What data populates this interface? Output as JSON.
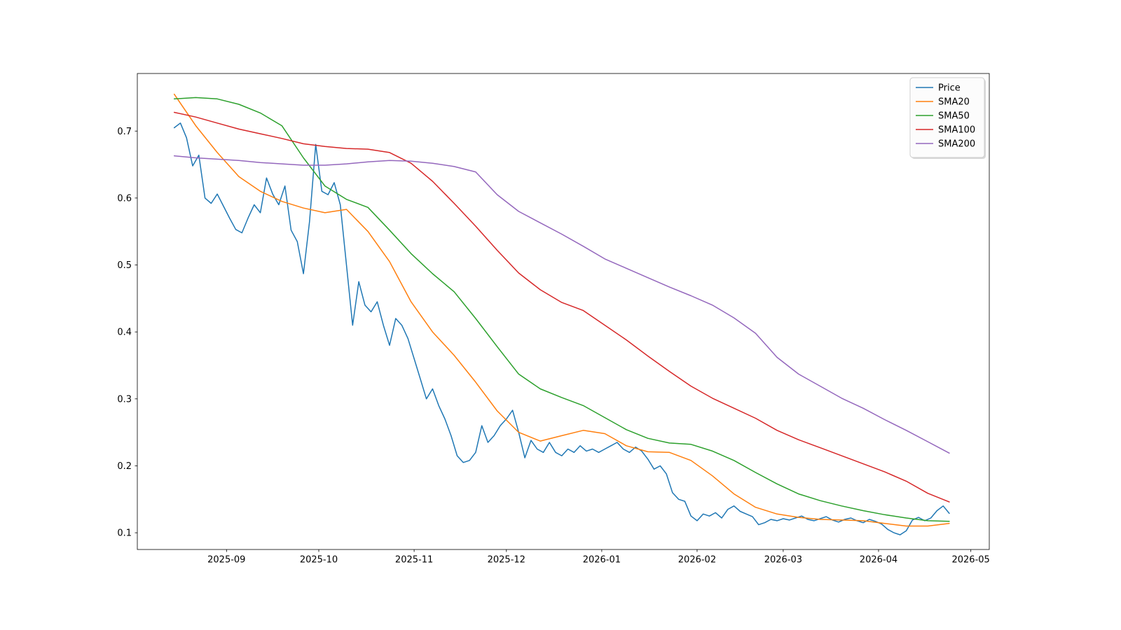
{
  "chart_data": {
    "type": "line",
    "title": "",
    "xlabel": "",
    "ylabel": "",
    "grid": false,
    "legend_position": "upper right",
    "x_epoch": "2025-08-15",
    "x_unit": "days since 2025-08-15",
    "xlim": [
      -12,
      265
    ],
    "ylim": [
      0.075,
      0.786
    ],
    "y_ticks": [
      0.1,
      0.2,
      0.3,
      0.4,
      0.5,
      0.6,
      0.7
    ],
    "x_ticks": [
      {
        "day": 17,
        "label": "2025-09"
      },
      {
        "day": 47,
        "label": "2025-10"
      },
      {
        "day": 78,
        "label": "2025-11"
      },
      {
        "day": 108,
        "label": "2025-12"
      },
      {
        "day": 139,
        "label": "2026-01"
      },
      {
        "day": 170,
        "label": "2026-02"
      },
      {
        "day": 198,
        "label": "2026-03"
      },
      {
        "day": 229,
        "label": "2026-04"
      },
      {
        "day": 259,
        "label": "2026-05"
      }
    ],
    "series": [
      {
        "name": "Price",
        "color": "#1f77b4",
        "start_day": 0,
        "step_days": 2,
        "values": [
          0.705,
          0.712,
          0.69,
          0.648,
          0.664,
          0.6,
          0.592,
          0.606,
          0.588,
          0.57,
          0.553,
          0.548,
          0.57,
          0.59,
          0.578,
          0.63,
          0.606,
          0.59,
          0.618,
          0.552,
          0.535,
          0.487,
          0.565,
          0.68,
          0.61,
          0.605,
          0.623,
          0.59,
          0.5,
          0.41,
          0.475,
          0.44,
          0.43,
          0.445,
          0.41,
          0.38,
          0.42,
          0.41,
          0.39,
          0.36,
          0.33,
          0.3,
          0.315,
          0.29,
          0.27,
          0.245,
          0.215,
          0.205,
          0.208,
          0.22,
          0.26,
          0.235,
          0.245,
          0.26,
          0.27,
          0.283,
          0.25,
          0.212,
          0.238,
          0.225,
          0.22,
          0.235,
          0.22,
          0.215,
          0.225,
          0.22,
          0.23,
          0.222,
          0.225,
          0.22,
          0.225,
          0.23,
          0.235,
          0.225,
          0.22,
          0.228,
          0.222,
          0.21,
          0.195,
          0.2,
          0.188,
          0.16,
          0.15,
          0.147,
          0.125,
          0.118,
          0.128,
          0.125,
          0.13,
          0.122,
          0.135,
          0.14,
          0.132,
          0.128,
          0.124,
          0.112,
          0.115,
          0.12,
          0.118,
          0.121,
          0.119,
          0.122,
          0.125,
          0.12,
          0.118,
          0.121,
          0.124,
          0.119,
          0.116,
          0.12,
          0.122,
          0.118,
          0.115,
          0.12,
          0.117,
          0.113,
          0.105,
          0.1,
          0.097,
          0.103,
          0.119,
          0.123,
          0.118,
          0.122,
          0.133,
          0.14,
          0.129
        ]
      },
      {
        "name": "SMA20",
        "color": "#ff7f0e",
        "start_day": 0,
        "step_days": 7,
        "values": [
          0.755,
          0.708,
          0.668,
          0.632,
          0.61,
          0.595,
          0.585,
          0.578,
          0.583,
          0.55,
          0.505,
          0.445,
          0.4,
          0.365,
          0.325,
          0.282,
          0.25,
          0.237,
          0.245,
          0.253,
          0.248,
          0.23,
          0.221,
          0.22,
          0.208,
          0.185,
          0.158,
          0.138,
          0.128,
          0.123,
          0.12,
          0.119,
          0.118,
          0.114,
          0.11,
          0.11,
          0.114
        ]
      },
      {
        "name": "SMA50",
        "color": "#2ca02c",
        "start_day": 0,
        "step_days": 7,
        "values": [
          0.748,
          0.75,
          0.748,
          0.74,
          0.727,
          0.708,
          0.66,
          0.618,
          0.598,
          0.586,
          0.552,
          0.517,
          0.487,
          0.46,
          0.42,
          0.378,
          0.337,
          0.315,
          0.302,
          0.29,
          0.272,
          0.254,
          0.241,
          0.234,
          0.232,
          0.222,
          0.208,
          0.19,
          0.173,
          0.158,
          0.148,
          0.14,
          0.133,
          0.127,
          0.122,
          0.118,
          0.117
        ]
      },
      {
        "name": "SMA100",
        "color": "#d62728",
        "start_day": 0,
        "step_days": 7,
        "values": [
          0.728,
          0.721,
          0.712,
          0.703,
          0.696,
          0.689,
          0.681,
          0.677,
          0.674,
          0.673,
          0.668,
          0.652,
          0.625,
          0.592,
          0.558,
          0.522,
          0.488,
          0.463,
          0.444,
          0.432,
          0.41,
          0.388,
          0.364,
          0.341,
          0.319,
          0.301,
          0.286,
          0.271,
          0.253,
          0.239,
          0.227,
          0.215,
          0.203,
          0.191,
          0.177,
          0.159,
          0.146
        ]
      },
      {
        "name": "SMA200",
        "color": "#9467bd",
        "start_day": 0,
        "step_days": 7,
        "values": [
          0.663,
          0.66,
          0.658,
          0.656,
          0.653,
          0.651,
          0.649,
          0.649,
          0.651,
          0.654,
          0.656,
          0.655,
          0.652,
          0.647,
          0.639,
          0.605,
          0.58,
          0.563,
          0.546,
          0.528,
          0.509,
          0.495,
          0.481,
          0.467,
          0.454,
          0.44,
          0.421,
          0.398,
          0.362,
          0.337,
          0.319,
          0.301,
          0.286,
          0.269,
          0.253,
          0.236,
          0.219
        ]
      }
    ]
  },
  "legend": {
    "entries": [
      "Price",
      "SMA20",
      "SMA50",
      "SMA100",
      "SMA200"
    ]
  }
}
